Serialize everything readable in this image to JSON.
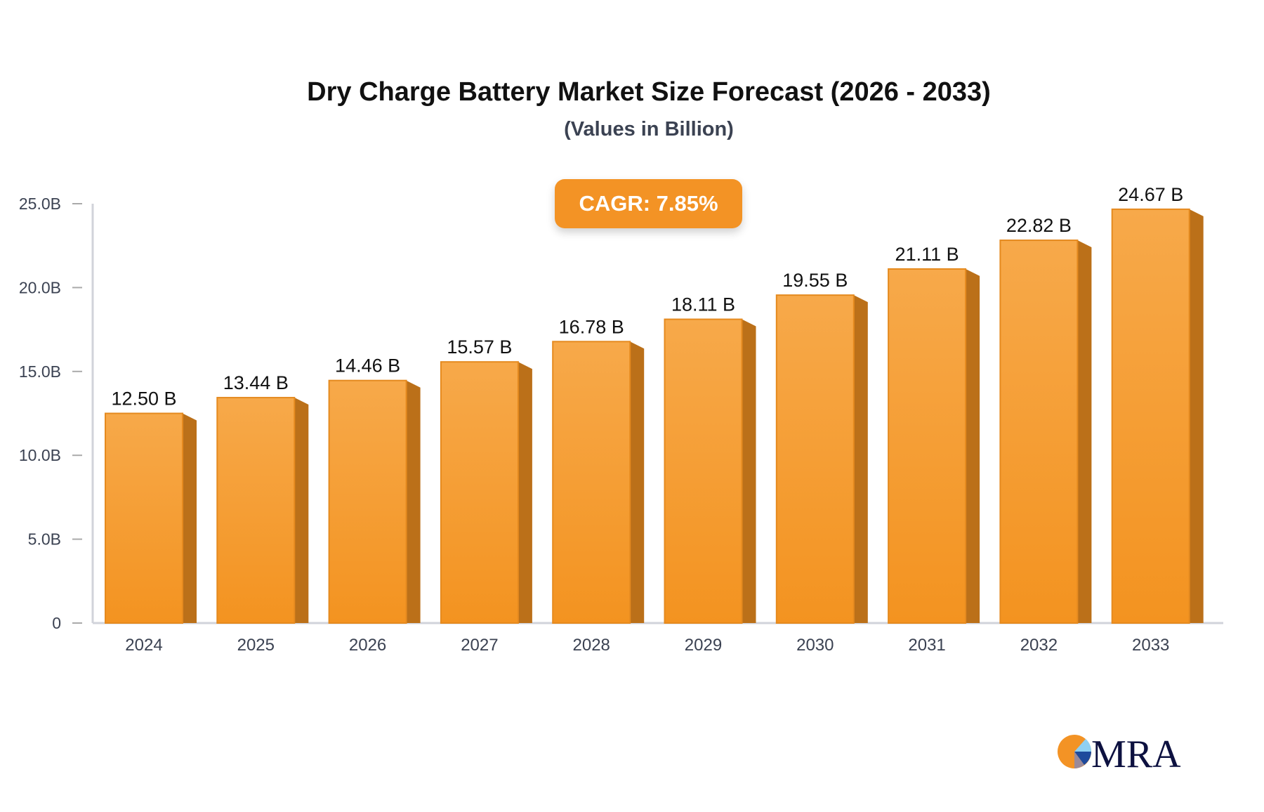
{
  "chart_data": {
    "type": "bar",
    "title": "Dry Charge Battery Market Size Forecast (2026 - 2033)",
    "subtitle": "(Values in Billion)",
    "annotation": "CAGR: 7.85%",
    "categories": [
      "2024",
      "2025",
      "2026",
      "2027",
      "2028",
      "2029",
      "2030",
      "2031",
      "2032",
      "2033"
    ],
    "values": [
      12.5,
      13.44,
      14.46,
      15.57,
      16.78,
      18.11,
      19.55,
      21.11,
      22.82,
      24.67
    ],
    "data_labels": [
      "12.50 B",
      "13.44 B",
      "14.46 B",
      "15.57 B",
      "16.78 B",
      "18.11 B",
      "19.55 B",
      "21.11 B",
      "22.82 B",
      "24.67 B"
    ],
    "ylim": [
      0,
      25
    ],
    "yticks": [
      0,
      5,
      10,
      15,
      20,
      25
    ],
    "ytick_labels": [
      "0",
      "5.0B",
      "10.0B",
      "15.0B",
      "20.0B",
      "25.0B"
    ],
    "grid": false,
    "colors": {
      "bar_top": "#f7a94a",
      "bar_bottom": "#f39320",
      "bar_side": "#bb7019",
      "bar_edge": "#e58a1f",
      "axis": "#d1d3da"
    }
  },
  "logo": {
    "text": "MRA"
  }
}
